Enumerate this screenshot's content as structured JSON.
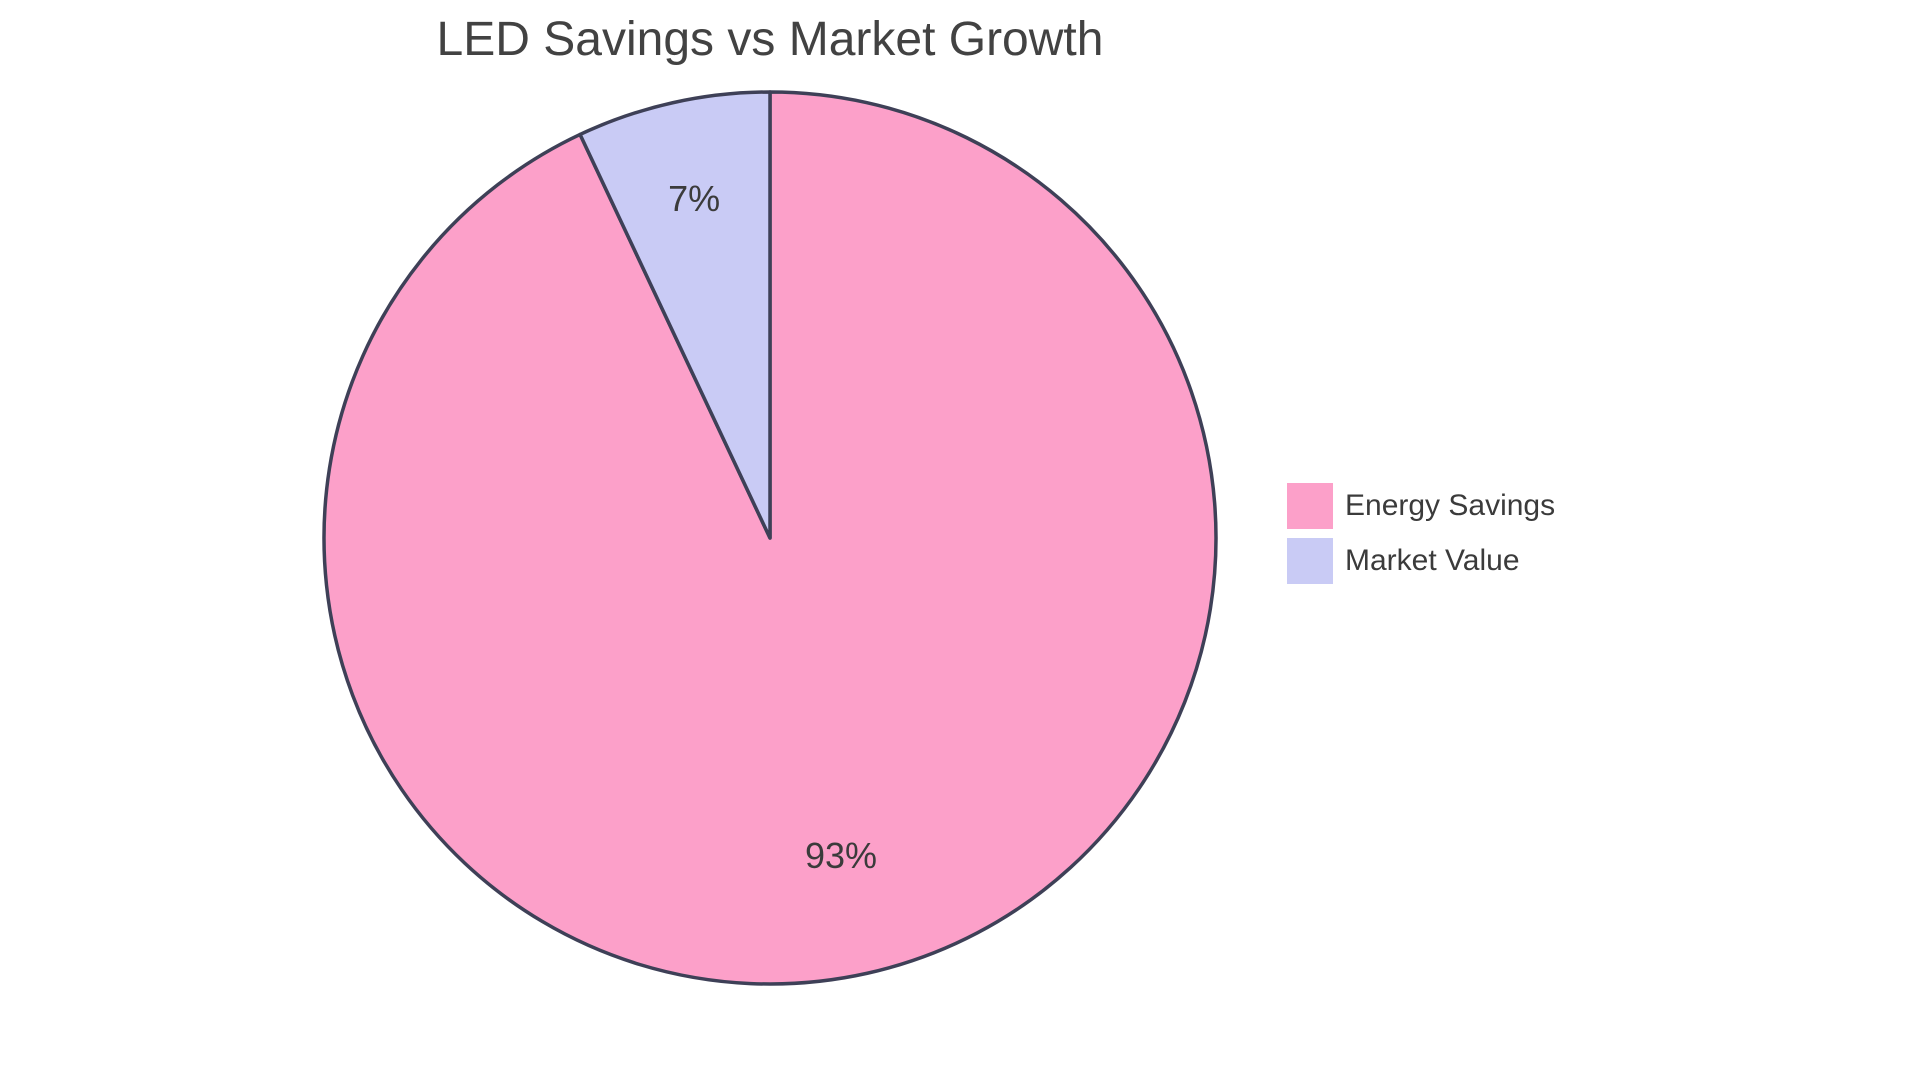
{
  "chart_data": {
    "type": "pie",
    "title": "LED Savings vs Market Growth",
    "series": [
      {
        "name": "Energy Savings",
        "value": 93,
        "percent_label": "93%",
        "color": "#FCA0C9"
      },
      {
        "name": "Market Value",
        "value": 7,
        "percent_label": "7%",
        "color": "#C9CBF5"
      }
    ],
    "legend_position": "right",
    "start_angle": "top",
    "direction": "clockwise"
  },
  "colors": {
    "background": "#FFFFFF",
    "slice_border": "#3E4057",
    "title_text": "#424242",
    "label_text": "#3B3B3B",
    "legend_text": "#3B3B3B"
  }
}
